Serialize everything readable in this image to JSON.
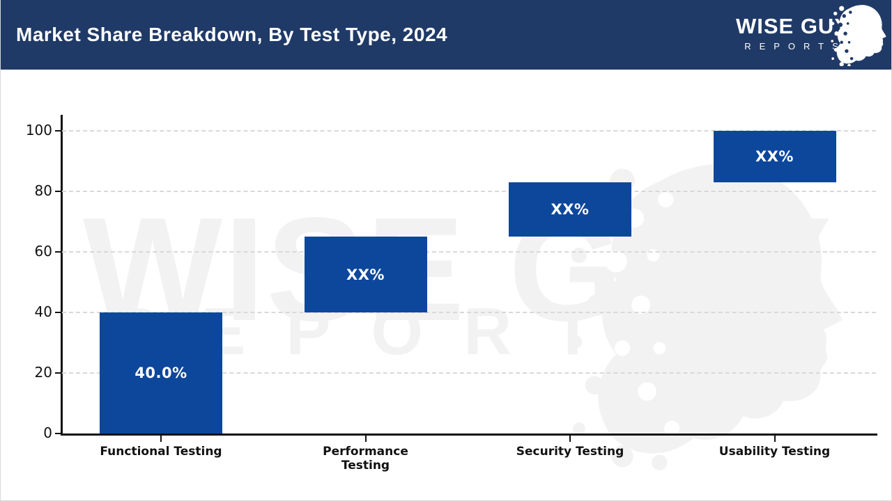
{
  "header": {
    "title": "Market Share Breakdown, By Test Type, 2024",
    "logo": {
      "wordmark": "WISE GUY",
      "subtext": "REPORTS"
    }
  },
  "watermark": {
    "line1": "WISE GUY",
    "line2": "REPORTS"
  },
  "colors": {
    "header_background": "#203a67",
    "bar_fill": "#0d479c",
    "bar_label_text": "#ffffff",
    "watermark": "#f2f2f3",
    "gridline": "#d8d8d8",
    "axis_text": "#111111"
  },
  "chart_data": {
    "type": "bar",
    "variant": "waterfall",
    "title": "Market Share Breakdown, By Test Type, 2024",
    "categories": [
      "Functional Testing",
      "Performance\nTesting",
      "Security Testing",
      "Usability Testing"
    ],
    "bars": [
      {
        "category": "Functional Testing",
        "start": 0,
        "end": 40,
        "value": 40.0,
        "label": "40.0%"
      },
      {
        "category": "Performance Testing",
        "start": 40,
        "end": 65,
        "value": 25.0,
        "label": "XX%"
      },
      {
        "category": "Security Testing",
        "start": 65,
        "end": 83,
        "value": 18.0,
        "label": "XX%"
      },
      {
        "category": "Usability Testing",
        "start": 83,
        "end": 100,
        "value": 17.0,
        "label": "XX%"
      }
    ],
    "xlabel": "",
    "ylabel": "",
    "ylim": [
      0,
      100
    ],
    "yticks": [
      0,
      20,
      40,
      60,
      80,
      100
    ],
    "grid": {
      "axis": "y",
      "style": "dashed",
      "on": true
    },
    "legend": "none"
  }
}
